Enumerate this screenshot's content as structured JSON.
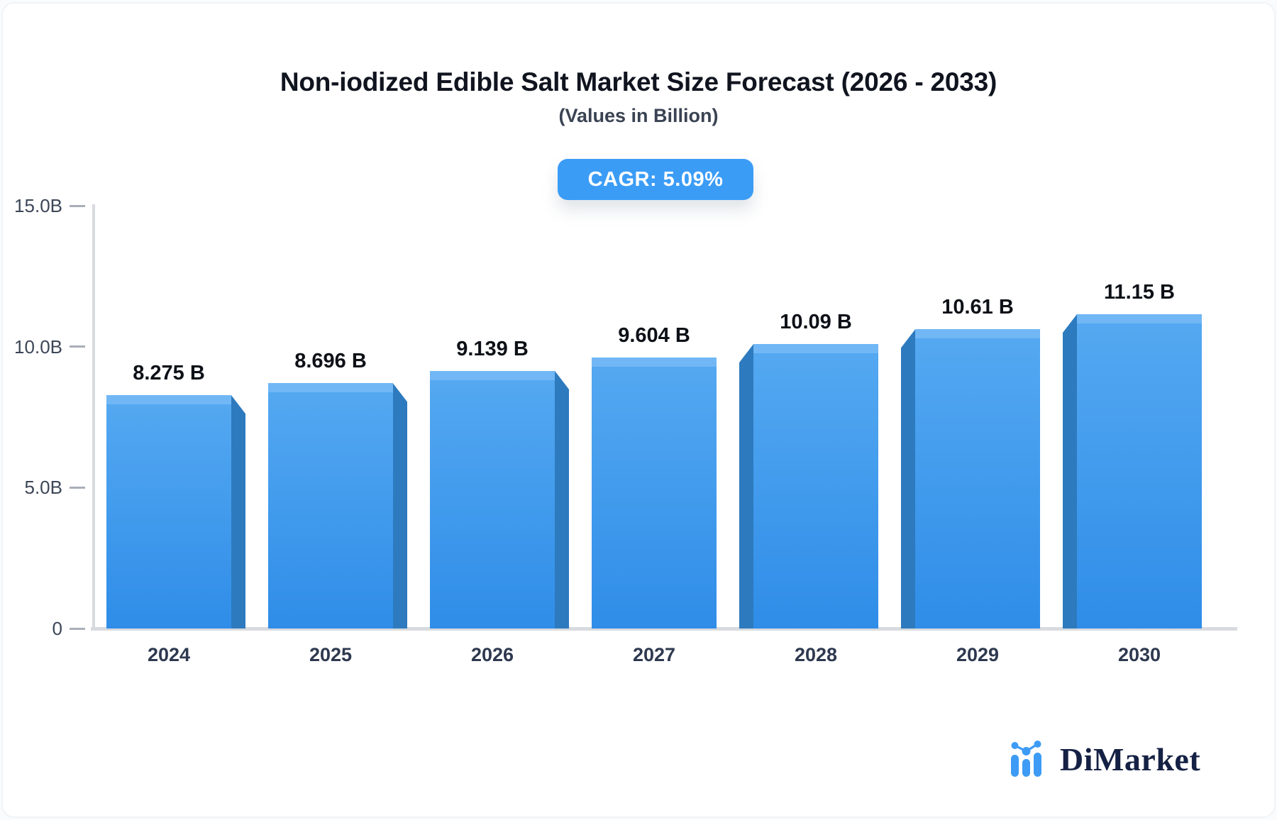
{
  "page": {
    "title": "Non-iodized Edible Salt Market Size Forecast (2026 - 2033)",
    "subtitle": "(Values in Billion)",
    "cagr_label": "CAGR: 5.09%",
    "brand": {
      "name": "DiMarket",
      "icon": "bar-line-chart-icon"
    }
  },
  "chart_data": {
    "type": "bar",
    "title": "Non-iodized Edible Salt Market Size Forecast (2026 - 2033)",
    "subtitle": "(Values in Billion)",
    "xlabel": "",
    "ylabel": "Values in Billion",
    "categories": [
      "2024",
      "2025",
      "2026",
      "2027",
      "2028",
      "2029",
      "2030"
    ],
    "values": [
      8.275,
      8.696,
      9.139,
      9.604,
      10.09,
      10.61,
      11.15
    ],
    "value_labels": [
      "8.275 B",
      "8.696 B",
      "9.139 B",
      "9.604 B",
      "10.09 B",
      "10.61 B",
      "11.15 B"
    ],
    "ylim": [
      0,
      15
    ],
    "yticks": [
      {
        "value": 15,
        "label": "15.0B"
      },
      {
        "value": 10,
        "label": "10.0B"
      },
      {
        "value": 5,
        "label": "5.0B"
      },
      {
        "value": 0,
        "label": "0"
      }
    ],
    "grid": false,
    "legend": false,
    "annotations": {
      "cagr": "CAGR: 5.09%"
    },
    "style_3d": "center-perspective: bars left of center show dark right face, bars right of center show dark left face"
  },
  "colors": {
    "accent_blue": "#3b9cf6",
    "bar_gradient_top": "#55a9f1",
    "bar_gradient_bottom": "#2f8de8",
    "bar_highlight": "#71b7f5",
    "bar_side_dark": "#2d7abe",
    "axis_gray": "#d7dade",
    "tick_gray": "#a9afb9",
    "title_text": "#10141f",
    "subtitle_text": "#3a4353",
    "axis_label_text": "#3c4657",
    "year_label_text": "#2e3950",
    "value_label_text": "#0d1117",
    "badge_text": "#ffffff",
    "brand_navy": "#152144",
    "brand_blue": "#3d9bf5",
    "card_bg": "#ffffff"
  }
}
